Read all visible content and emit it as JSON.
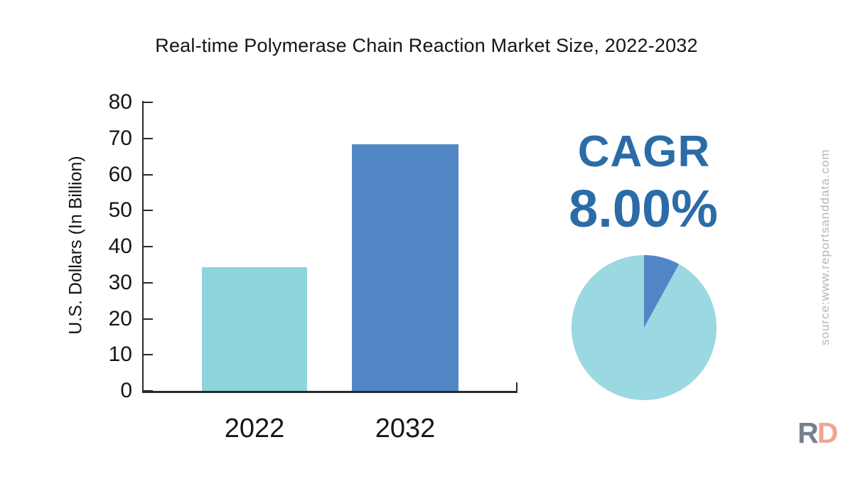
{
  "title": "Real-time Polymerase Chain Reaction Market Size, 2022-2032",
  "source": "source:www.reportsanddata.com",
  "cagr": {
    "label": "CAGR",
    "value": "8.00%"
  },
  "logo": {
    "letter_r": "R",
    "letter_d": "D"
  },
  "colors": {
    "title-text": "#161616",
    "axis": "#2a2a2a",
    "cagr-blue": "#2b6ca8",
    "source-gray": "#b6b6b6",
    "logo-gray": "#76818f",
    "logo-salmon": "#f2a58c"
  },
  "chart_data": [
    {
      "type": "bar",
      "title": "Real-time Polymerase Chain Reaction Market Size, 2022-2032",
      "categories": [
        "2022",
        "2032"
      ],
      "values": [
        34.2,
        68.3
      ],
      "xlabel": "",
      "ylabel": "U.S. Dollars (In Billion)",
      "ylim": [
        0,
        80
      ],
      "ytick_step": 10,
      "bar_colors": [
        "#8fd3dd",
        "#5187c5"
      ],
      "grid": false,
      "legend": false
    },
    {
      "type": "pie",
      "title": "CAGR 8.00%",
      "labels": [
        "cagr-slice",
        "remainder"
      ],
      "values": [
        8,
        92
      ],
      "colors": [
        "#5086c5",
        "#9ad8e2"
      ],
      "start_angle_deg": 0,
      "direction": "clockwise"
    }
  ]
}
